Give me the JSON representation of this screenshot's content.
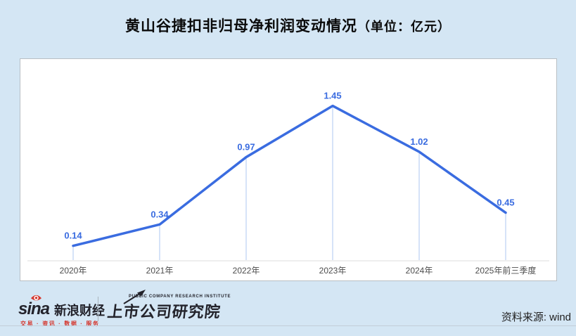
{
  "title": {
    "main": "黄山谷捷扣非归母净利润变动情况",
    "unit": "（单位：亿元）"
  },
  "chart_data": {
    "type": "line",
    "title": "黄山谷捷扣非归母净利润变动情况",
    "unit": "亿元",
    "categories": [
      "2020年",
      "2021年",
      "2022年",
      "2023年",
      "2024年",
      "2025年前三季度"
    ],
    "values": [
      0.14,
      0.34,
      0.97,
      1.45,
      1.02,
      0.45
    ],
    "xlabel": "",
    "ylabel": "",
    "ylim": [
      0,
      1.6
    ],
    "grid": false,
    "legend": "none",
    "line_color": "#3a6ce0",
    "label_color": "#3a6ce0",
    "drop_line_color": "#aec7f2",
    "axis_color": "#dcdcdc",
    "tick_label_color": "#4d4d4d"
  },
  "footer": {
    "sina_word": "sina",
    "sina_cn": "新浪财经",
    "sina_tagline": "交易 · 资讯 · 数据 · 服务",
    "institute_en": "PUBLIC COMPANY RESEARCH INSTITUTE",
    "institute_cn": "上市公司研究院",
    "source": "资料来源: wind"
  },
  "colors": {
    "background": "#d4e6f4",
    "panel_bg": "#ffffff",
    "panel_border": "#b9bfc4",
    "title_color": "#0a0a0a",
    "sina_red": "#d5372e",
    "logo_dark": "#23232b",
    "source_color": "#222222"
  }
}
